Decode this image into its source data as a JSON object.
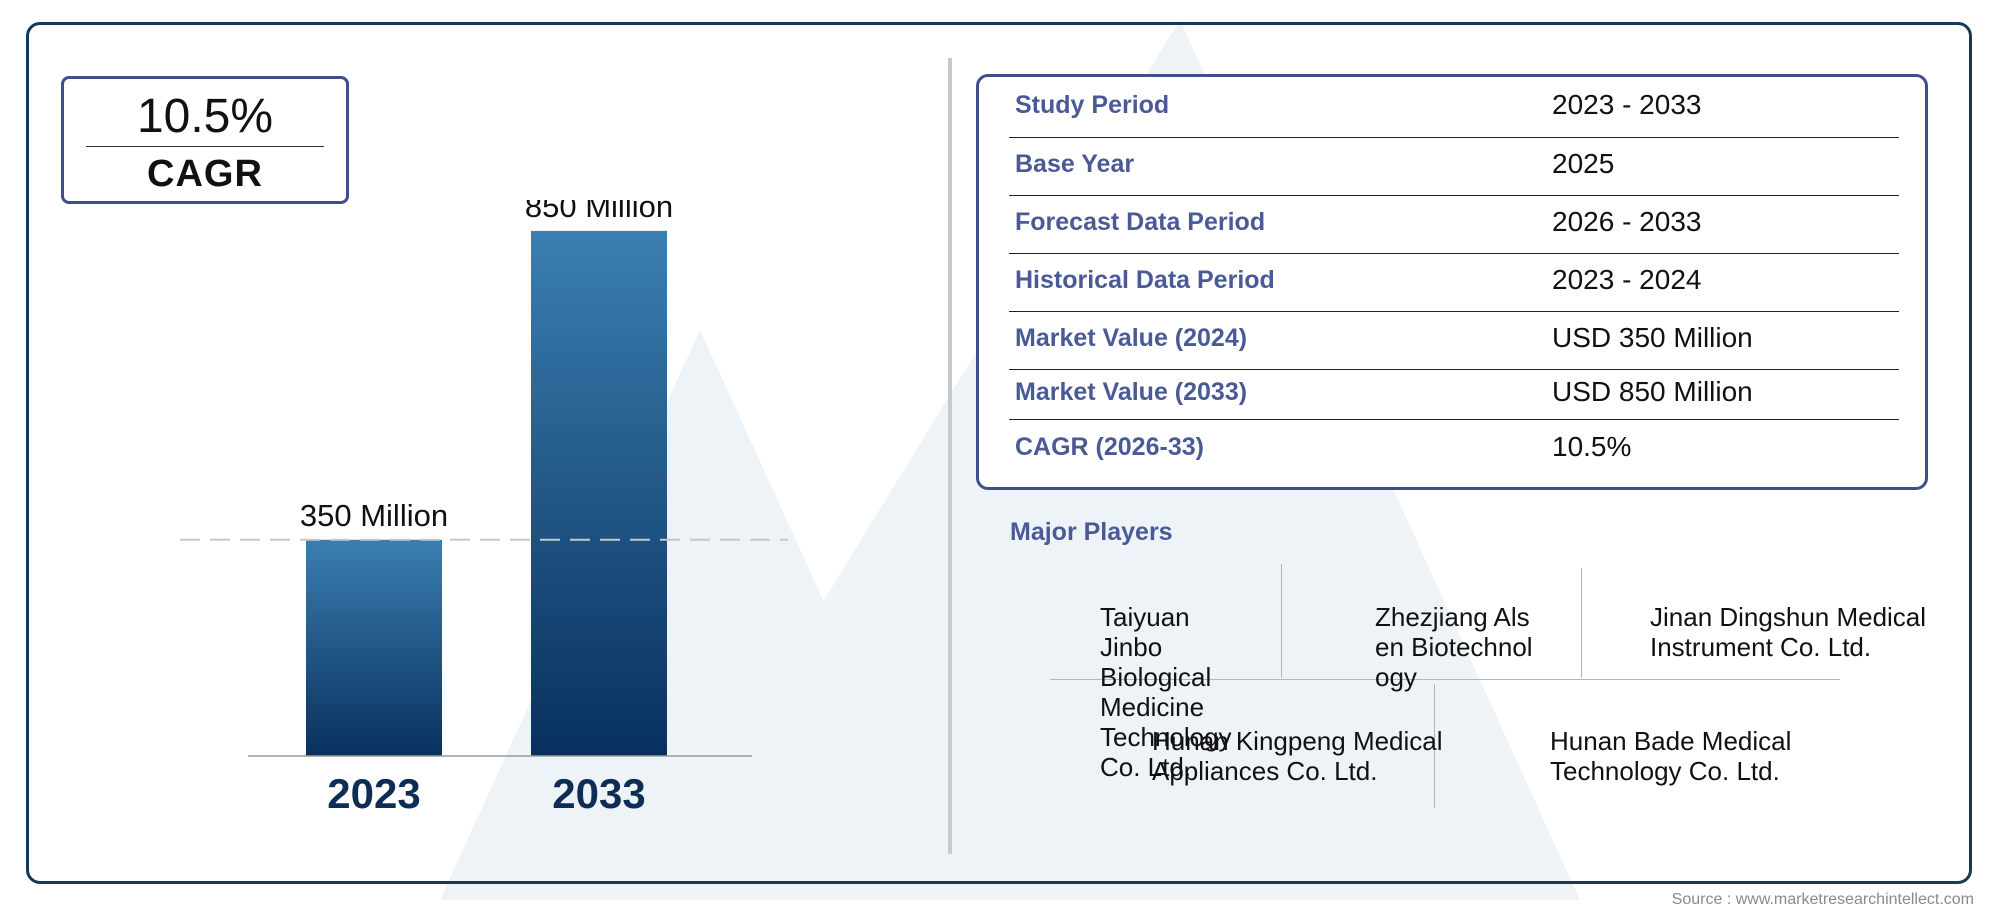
{
  "cagr_badge": {
    "value": "10.5%",
    "label": "CAGR"
  },
  "chart_data": {
    "type": "bar",
    "categories": [
      "2023",
      "2033"
    ],
    "values": [
      350,
      850
    ],
    "value_labels": [
      "350 Million",
      "850 Million"
    ],
    "title": "",
    "xlabel": "",
    "ylabel": "",
    "ylim": [
      0,
      900
    ],
    "grid": false,
    "bar_color_top": "#3a7fb0",
    "bar_color_bottom": "#08305e",
    "category_color": "#0d2d57"
  },
  "info_table": [
    {
      "label": "Study Period",
      "value": "2023 - 2033"
    },
    {
      "label": "Base Year",
      "value": "2025"
    },
    {
      "label": "Forecast Data Period",
      "value": "2026 - 2033"
    },
    {
      "label": "Historical Data Period",
      "value": "2023 - 2024"
    },
    {
      "label": "Market Value (2024)",
      "value": "USD 350 Million"
    },
    {
      "label": "Market Value (2033)",
      "value": "USD 850 Million"
    },
    {
      "label": "CAGR (2026-33)",
      "value": "10.5%"
    }
  ],
  "major_players": {
    "title": "Major Players",
    "players": [
      "Taiyuan Jinbo Biological Medicine Technology Co. Ltd.",
      "Zhezjiang Alsen Biotechnology",
      "Jinan Dingshun Medical Instrument Co. Ltd.",
      "Hunan Kingpeng Medical Appliances Co. Ltd.",
      "Hunan Bade Medical Technology Co. Ltd."
    ]
  },
  "source": "Source : www.marketresearchintellect.com",
  "colors": {
    "accent": "#4a5a96",
    "frame": "#143a5a",
    "box_border": "#3f4f8c"
  }
}
